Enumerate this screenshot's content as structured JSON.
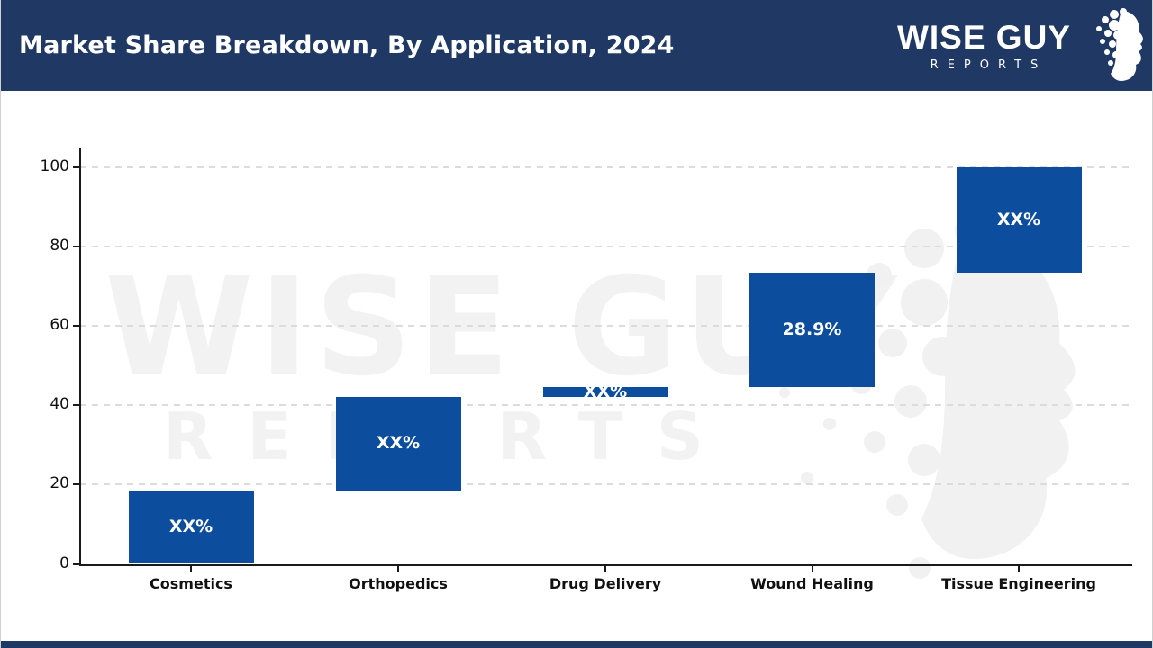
{
  "header": {
    "title": "Market Share Breakdown, By Application, 2024",
    "logo": {
      "line1": "WISE GUY",
      "line2": "REPORTS"
    }
  },
  "watermark": {
    "line1": "WISE GUY",
    "line2": "REPORTS"
  },
  "colors": {
    "header_bg": "#1f3864",
    "bar_blue": "#0d4d9e",
    "grid": "#dcdcdc",
    "watermark": "#f2f2f3",
    "axis": "#1a1a1a",
    "value_label": "#ffffff"
  },
  "chart_data": {
    "type": "bar",
    "subtype": "waterfall",
    "title": "Market Share Breakdown, By Application, 2024",
    "categories": [
      "Cosmetics",
      "Orthopedics",
      "Drug Delivery",
      "Wound Healing",
      "Tissue Engineering"
    ],
    "segments": [
      {
        "category": "Cosmetics",
        "start": 0.0,
        "end": 18.5,
        "label": "XX%"
      },
      {
        "category": "Orthopedics",
        "start": 18.5,
        "end": 42.0,
        "label": "XX%"
      },
      {
        "category": "Drug Delivery",
        "start": 42.0,
        "end": 44.5,
        "label": "XX%"
      },
      {
        "category": "Wound Healing",
        "start": 44.5,
        "end": 73.4,
        "label": "28.9%"
      },
      {
        "category": "Tissue Engineering",
        "start": 73.4,
        "end": 100.0,
        "label": "XX%"
      }
    ],
    "yticks": [
      0,
      20,
      40,
      60,
      80,
      100
    ],
    "ylim": [
      0,
      105
    ],
    "xlabel": "",
    "ylabel": "",
    "grid": "horizontal-dashed",
    "legend": "none"
  }
}
